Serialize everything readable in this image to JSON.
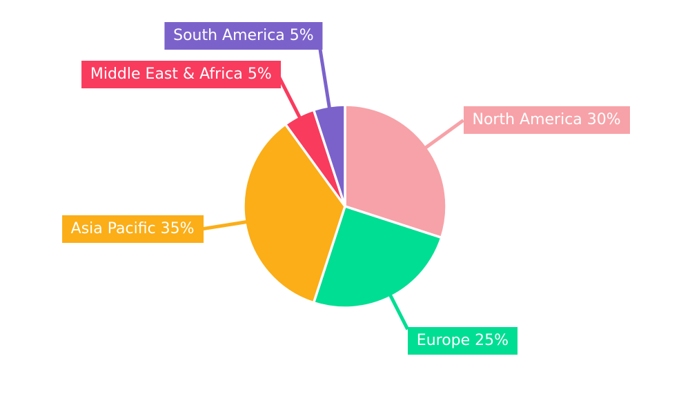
{
  "chart_data": {
    "type": "pie",
    "categories": [
      "North America",
      "Europe",
      "Asia Pacific",
      "Middle East & Africa",
      "South America"
    ],
    "values": [
      30,
      25,
      35,
      5,
      5
    ],
    "unit": "%",
    "start_angle_deg": 0,
    "direction": "clockwise",
    "legend_position": "none",
    "background_color": "#ffffff",
    "label_text_color": "#ffffff",
    "slice_border_color": "#ffffff",
    "slices": [
      {
        "label": "North America",
        "value": 30,
        "display": "North America 30%",
        "color": "#F7A2A8"
      },
      {
        "label": "Europe",
        "value": 25,
        "display": "Europe 25%",
        "color": "#00DE93"
      },
      {
        "label": "Asia Pacific",
        "value": 35,
        "display": "Asia Pacific 35%",
        "color": "#FBAE17"
      },
      {
        "label": "Middle East & Africa",
        "value": 5,
        "display": "Middle East & Africa 5%",
        "color": "#F93B5E"
      },
      {
        "label": "South America",
        "value": 5,
        "display": "South America 5%",
        "color": "#7B62CB"
      }
    ]
  }
}
